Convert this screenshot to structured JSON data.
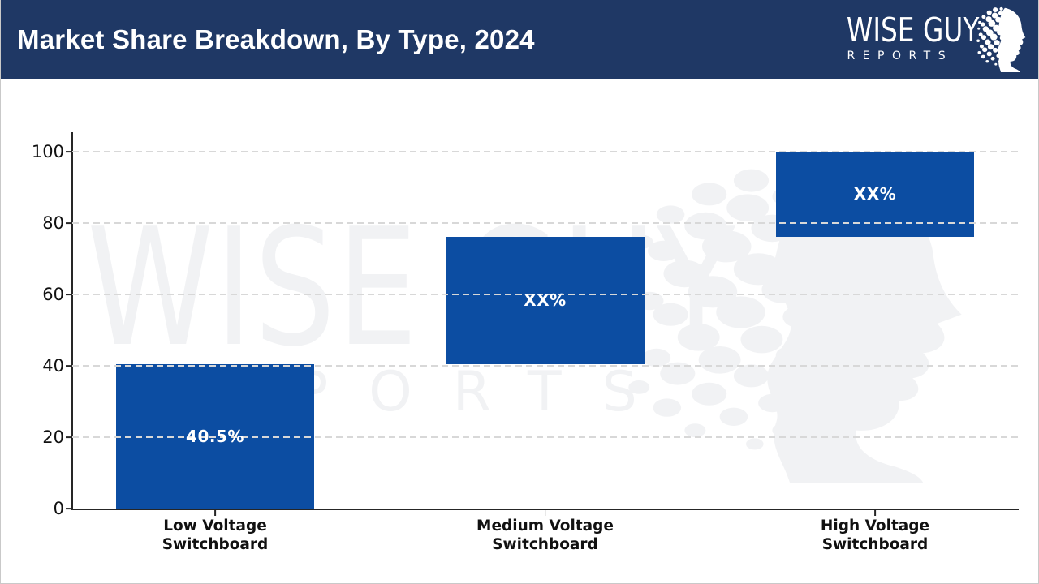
{
  "header": {
    "title": "Market Share Breakdown, By Type, 2024",
    "logo": {
      "line1": "WISE GUY",
      "line2": "REPORTS"
    }
  },
  "watermark": {
    "line1": "WISE GUY",
    "line2": "REPORTS"
  },
  "chart_data": {
    "type": "bar",
    "subtype": "stacked-waterfall-percentage",
    "title": "Market Share Breakdown, By Type, 2024",
    "categories": [
      "Low Voltage Switchboard",
      "Medium Voltage Switchboard",
      "High Voltage Switchboard"
    ],
    "segments": [
      {
        "category": "Low Voltage Switchboard",
        "label": "40.5%",
        "start": 0,
        "end": 40.5
      },
      {
        "category": "Medium Voltage Switchboard",
        "label": "XX%",
        "start": 40.5,
        "end": 76.2
      },
      {
        "category": "High Voltage Switchboard",
        "label": "XX%",
        "start": 76.2,
        "end": 100
      }
    ],
    "ylim": [
      0,
      100
    ],
    "yticks": [
      0,
      20,
      40,
      60,
      80,
      100
    ],
    "grid": "horizontal-dashed",
    "grid_over_bars": true,
    "legend": "none"
  },
  "colors": {
    "header_bg": "#1f3865",
    "bar": "#0c4da2",
    "axis": "#262626",
    "grid": "#d8d8d8",
    "watermark": "#f1f2f4",
    "text": "#111111",
    "label_text": "#ffffff"
  }
}
